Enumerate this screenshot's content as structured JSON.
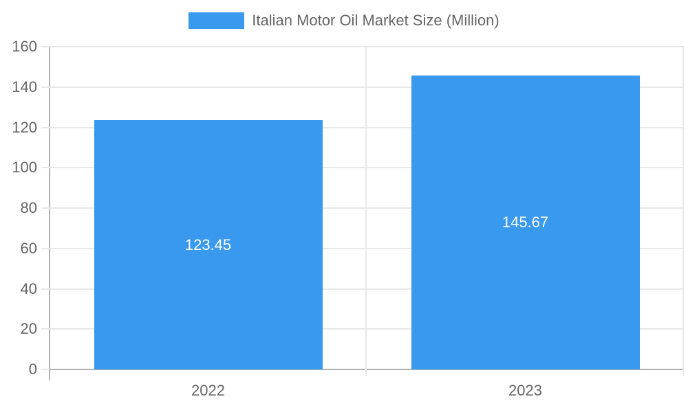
{
  "chart_data": {
    "type": "bar",
    "title": "Italian Motor Oil Market Size (Million)",
    "categories": [
      "2022",
      "2023"
    ],
    "values": [
      123.45,
      145.67
    ],
    "value_labels": [
      "123.45",
      "145.67"
    ],
    "ylim": [
      0,
      160
    ],
    "ytick_step": 20,
    "ytick_labels": [
      "0",
      "20",
      "40",
      "60",
      "80",
      "100",
      "120",
      "140",
      "160"
    ],
    "grid": true,
    "legend_position": "top",
    "bar_color": "#3999ee",
    "value_label_color": "#ffffff",
    "grid_color": "#e8e8e8",
    "axis_color": "#b0b0b0",
    "tick_label_color": "#666666"
  }
}
